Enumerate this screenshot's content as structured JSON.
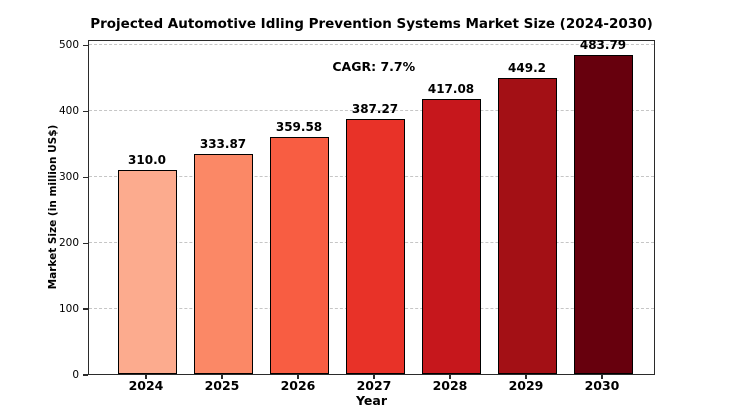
{
  "chart_data": {
    "type": "bar",
    "title": "Projected Automotive Idling Prevention Systems Market Size (2024-2030)",
    "annotation": "CAGR: 7.7%",
    "xlabel": "Year",
    "ylabel": "Market Size (in million US$)",
    "categories": [
      "2024",
      "2025",
      "2026",
      "2027",
      "2028",
      "2029",
      "2030"
    ],
    "values": [
      310.0,
      333.87,
      359.58,
      387.27,
      417.08,
      449.2,
      483.79
    ],
    "value_labels": [
      "310.0",
      "333.87",
      "359.58",
      "387.27",
      "417.08",
      "449.2",
      "483.79"
    ],
    "bar_colors": [
      "#FCAB8E",
      "#FB8866",
      "#F85D42",
      "#E83228",
      "#C6171C",
      "#A31015",
      "#67000D"
    ],
    "bar_edge_color": "#000000",
    "ylim": [
      0,
      500
    ],
    "yticks": [
      0,
      100,
      200,
      300,
      400,
      500
    ],
    "grid": {
      "axis": "y",
      "style": "dashed",
      "color": "#C6C6C6"
    },
    "legend": null,
    "background_color": "#FFFFFF"
  }
}
